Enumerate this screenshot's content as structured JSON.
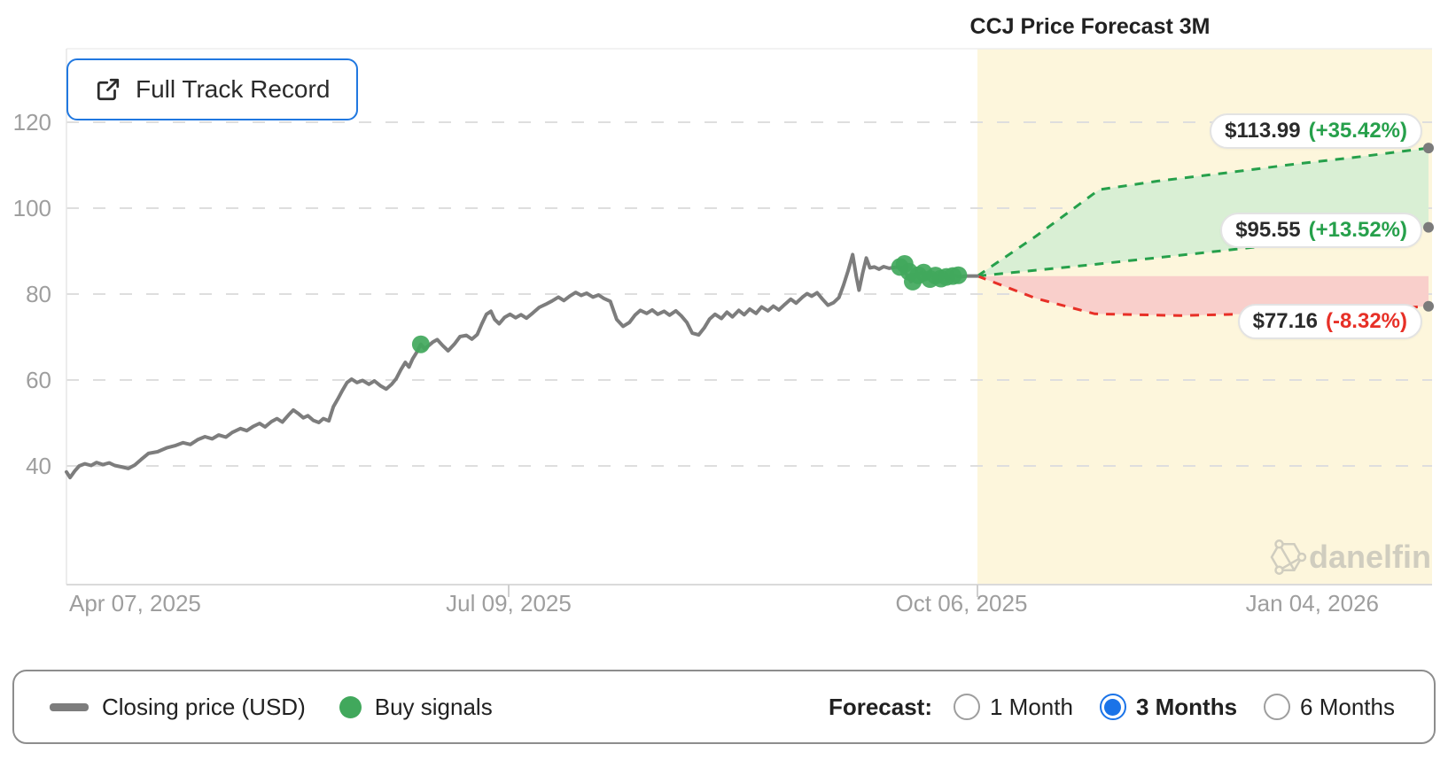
{
  "button": {
    "label": "Full Track Record"
  },
  "chart_data": {
    "type": "line",
    "title": "CCJ Price Forecast 3M",
    "watermark": "danelfin",
    "ylabel": "Closing price (USD)",
    "ylim": [
      12,
      137
    ],
    "y_ticks": [
      120,
      100,
      80,
      60,
      40
    ],
    "x_ticks": [
      "Apr 07, 2025",
      "Jul 09, 2025",
      "Oct 06, 2025",
      "Jan 04, 2026"
    ],
    "grid": true,
    "series": [
      {
        "name": "Closing price (USD)",
        "color": "#7d7d7d",
        "points": [
          [
            0.0,
            38.6
          ],
          [
            0.004,
            37.3
          ],
          [
            0.009,
            38.8
          ],
          [
            0.014,
            40.0
          ],
          [
            0.02,
            40.5
          ],
          [
            0.027,
            40.1
          ],
          [
            0.033,
            40.8
          ],
          [
            0.04,
            40.3
          ],
          [
            0.047,
            40.7
          ],
          [
            0.053,
            40.1
          ],
          [
            0.06,
            39.8
          ],
          [
            0.068,
            39.4
          ],
          [
            0.075,
            40.2
          ],
          [
            0.082,
            41.5
          ],
          [
            0.09,
            42.9
          ],
          [
            0.1,
            43.3
          ],
          [
            0.11,
            44.2
          ],
          [
            0.119,
            44.7
          ],
          [
            0.128,
            45.4
          ],
          [
            0.136,
            45.0
          ],
          [
            0.144,
            46.1
          ],
          [
            0.152,
            46.8
          ],
          [
            0.16,
            46.3
          ],
          [
            0.167,
            47.2
          ],
          [
            0.175,
            46.7
          ],
          [
            0.182,
            47.8
          ],
          [
            0.191,
            48.7
          ],
          [
            0.198,
            48.2
          ],
          [
            0.205,
            49.2
          ],
          [
            0.212,
            49.9
          ],
          [
            0.218,
            49.1
          ],
          [
            0.225,
            50.3
          ],
          [
            0.231,
            51.0
          ],
          [
            0.237,
            50.2
          ],
          [
            0.244,
            51.9
          ],
          [
            0.249,
            53.0
          ],
          [
            0.255,
            52.1
          ],
          [
            0.26,
            51.2
          ],
          [
            0.265,
            51.7
          ],
          [
            0.271,
            50.6
          ],
          [
            0.277,
            50.1
          ],
          [
            0.282,
            51.0
          ],
          [
            0.288,
            50.5
          ],
          [
            0.293,
            53.8
          ],
          [
            0.298,
            55.6
          ],
          [
            0.303,
            57.6
          ],
          [
            0.308,
            59.4
          ],
          [
            0.313,
            60.2
          ],
          [
            0.319,
            59.4
          ],
          [
            0.325,
            59.9
          ],
          [
            0.332,
            59.0
          ],
          [
            0.338,
            59.8
          ],
          [
            0.345,
            58.6
          ],
          [
            0.351,
            57.9
          ],
          [
            0.357,
            59.0
          ],
          [
            0.362,
            60.3
          ],
          [
            0.367,
            62.4
          ],
          [
            0.372,
            64.1
          ],
          [
            0.376,
            63.0
          ],
          [
            0.38,
            64.9
          ],
          [
            0.384,
            66.3
          ],
          [
            0.389,
            68.3
          ],
          [
            0.393,
            67.3
          ],
          [
            0.397,
            67.9
          ],
          [
            0.402,
            68.8
          ],
          [
            0.407,
            69.4
          ],
          [
            0.413,
            68.0
          ],
          [
            0.419,
            66.8
          ],
          [
            0.426,
            68.4
          ],
          [
            0.432,
            70.1
          ],
          [
            0.439,
            70.4
          ],
          [
            0.445,
            69.5
          ],
          [
            0.451,
            70.6
          ],
          [
            0.456,
            73.1
          ],
          [
            0.461,
            75.3
          ],
          [
            0.466,
            76.0
          ],
          [
            0.47,
            74.1
          ],
          [
            0.475,
            73.1
          ],
          [
            0.481,
            74.6
          ],
          [
            0.487,
            75.3
          ],
          [
            0.493,
            74.5
          ],
          [
            0.499,
            75.2
          ],
          [
            0.505,
            74.4
          ],
          [
            0.512,
            75.6
          ],
          [
            0.519,
            76.9
          ],
          [
            0.526,
            77.6
          ],
          [
            0.533,
            78.4
          ],
          [
            0.54,
            79.3
          ],
          [
            0.546,
            78.5
          ],
          [
            0.553,
            79.6
          ],
          [
            0.559,
            80.4
          ],
          [
            0.565,
            79.7
          ],
          [
            0.571,
            80.2
          ],
          [
            0.578,
            79.3
          ],
          [
            0.584,
            79.8
          ],
          [
            0.59,
            79.0
          ],
          [
            0.597,
            78.3
          ],
          [
            0.604,
            74.1
          ],
          [
            0.611,
            72.5
          ],
          [
            0.618,
            73.4
          ],
          [
            0.624,
            75.1
          ],
          [
            0.63,
            76.2
          ],
          [
            0.637,
            75.5
          ],
          [
            0.643,
            76.3
          ],
          [
            0.649,
            75.3
          ],
          [
            0.656,
            76.0
          ],
          [
            0.662,
            75.1
          ],
          [
            0.669,
            76.1
          ],
          [
            0.675,
            74.9
          ],
          [
            0.681,
            73.4
          ],
          [
            0.687,
            70.9
          ],
          [
            0.694,
            70.5
          ],
          [
            0.7,
            72.1
          ],
          [
            0.706,
            74.2
          ],
          [
            0.712,
            75.3
          ],
          [
            0.719,
            74.3
          ],
          [
            0.725,
            75.8
          ],
          [
            0.731,
            74.7
          ],
          [
            0.738,
            76.2
          ],
          [
            0.744,
            75.2
          ],
          [
            0.75,
            76.5
          ],
          [
            0.757,
            75.5
          ],
          [
            0.763,
            77.0
          ],
          [
            0.77,
            76.1
          ],
          [
            0.776,
            77.2
          ],
          [
            0.782,
            76.3
          ],
          [
            0.789,
            77.7
          ],
          [
            0.795,
            78.8
          ],
          [
            0.801,
            77.9
          ],
          [
            0.808,
            79.3
          ],
          [
            0.813,
            80.1
          ],
          [
            0.818,
            79.5
          ],
          [
            0.824,
            80.3
          ],
          [
            0.83,
            78.8
          ],
          [
            0.836,
            77.4
          ],
          [
            0.842,
            78.0
          ],
          [
            0.848,
            79.2
          ],
          [
            0.853,
            82.1
          ],
          [
            0.858,
            85.4
          ],
          [
            0.863,
            89.2
          ],
          [
            0.867,
            84.1
          ],
          [
            0.87,
            80.9
          ],
          [
            0.874,
            84.9
          ],
          [
            0.878,
            88.4
          ],
          [
            0.882,
            86.1
          ],
          [
            0.887,
            86.3
          ],
          [
            0.892,
            85.8
          ],
          [
            0.897,
            86.4
          ],
          [
            0.903,
            86.0
          ],
          [
            0.909,
            86.2
          ],
          [
            0.915,
            86.3
          ],
          [
            0.921,
            85.0
          ],
          [
            0.927,
            82.9
          ],
          [
            0.933,
            84.3
          ],
          [
            0.939,
            85.1
          ],
          [
            0.945,
            83.7
          ],
          [
            0.951,
            84.5
          ],
          [
            0.957,
            83.4
          ],
          [
            0.963,
            84.1
          ],
          [
            0.969,
            83.7
          ],
          [
            0.975,
            84.4
          ],
          [
            0.981,
            84.0
          ],
          [
            0.988,
            84.2
          ],
          [
            1.0,
            84.2
          ]
        ]
      }
    ],
    "buy_signals": {
      "name": "Buy signals",
      "color": "#41a85c",
      "points": [
        [
          0.389,
          68.3
        ],
        [
          0.915,
          86.3
        ],
        [
          0.92,
          87.0
        ],
        [
          0.925,
          85.2
        ],
        [
          0.929,
          82.9
        ],
        [
          0.935,
          84.4
        ],
        [
          0.941,
          85.0
        ],
        [
          0.948,
          83.5
        ],
        [
          0.954,
          84.3
        ],
        [
          0.96,
          83.6
        ],
        [
          0.966,
          84.0
        ],
        [
          0.973,
          84.2
        ],
        [
          0.979,
          84.4
        ]
      ]
    },
    "forecast": {
      "horizon": "3M",
      "region_start_tick": "Oct 06, 2025",
      "region_end_tick": "Jan 04, 2026",
      "region_color": "#fdf6dc",
      "base_value": 84.17,
      "bull": {
        "price": "$113.99",
        "pct": "(+35.42%)",
        "value": 113.99,
        "line_color": "#26a04b",
        "band_color": "#d9efd4",
        "points": [
          [
            0,
            84.2
          ],
          [
            0.13,
            93.5
          ],
          [
            0.27,
            104.3
          ],
          [
            0.4,
            106.3
          ],
          [
            0.55,
            108.2
          ],
          [
            0.7,
            110.2
          ],
          [
            0.85,
            112.0
          ],
          [
            1,
            113.99
          ]
        ]
      },
      "mid": {
        "price": "$95.55",
        "pct": "(+13.52%)",
        "value": 95.55,
        "line_color": "#26a04b",
        "points": [
          [
            0,
            84.2
          ],
          [
            0.25,
            86.8
          ],
          [
            0.5,
            89.6
          ],
          [
            0.75,
            92.5
          ],
          [
            1,
            95.55
          ]
        ]
      },
      "bear": {
        "price": "$77.16",
        "pct": "(-8.32%)",
        "value": 77.16,
        "line_color": "#e73027",
        "band_color": "#f9cfcb",
        "points": [
          [
            0,
            84.2
          ],
          [
            0.13,
            79.0
          ],
          [
            0.26,
            75.4
          ],
          [
            0.45,
            75.0
          ],
          [
            0.65,
            75.5
          ],
          [
            0.85,
            76.3
          ],
          [
            1,
            77.16
          ]
        ]
      }
    }
  },
  "legend": {
    "items": [
      {
        "label": "Closing price (USD)",
        "swatch": "line-swatch",
        "color": "#7d7d7d"
      },
      {
        "label": "Buy signals",
        "swatch": "dot-swatch",
        "color": "#41a85c"
      }
    ],
    "forecast_label": "Forecast:",
    "options": [
      {
        "label": "1 Month",
        "selected": false
      },
      {
        "label": "3 Months",
        "selected": true
      },
      {
        "label": "6 Months",
        "selected": false
      }
    ],
    "accent_color": "#1a73e8"
  }
}
